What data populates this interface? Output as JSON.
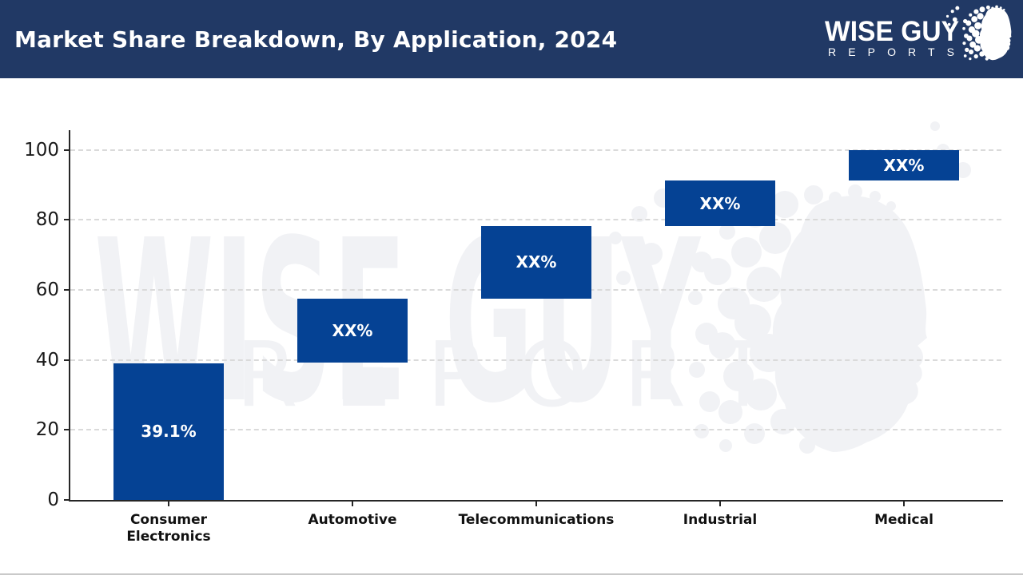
{
  "header": {
    "title": "Market Share Breakdown, By Application, 2024",
    "bg_color": "#213965",
    "logo": {
      "main": "WISE GUY",
      "sub": "REPORTS",
      "color": "#ffffff"
    }
  },
  "watermark": {
    "main": "WISE GUY",
    "sub": "REPORTS",
    "color": "#f1f2f5"
  },
  "chart_data": {
    "type": "bar",
    "subtype": "waterfall",
    "title": "Market Share Breakdown, By Application, 2024",
    "categories": [
      "Consumer Electronics",
      "Automotive",
      "Telecommunications",
      "Industrial",
      "Medical"
    ],
    "segments": [
      {
        "category": "Consumer Electronics",
        "start": 0,
        "end": 39.1,
        "size": 39.1,
        "label": "39.1%"
      },
      {
        "category": "Automotive",
        "start": 39.2,
        "end": 57.5,
        "size": 18.3,
        "label": "XX%"
      },
      {
        "category": "Telecommunications",
        "start": 57.5,
        "end": 78.2,
        "size": 20.7,
        "label": "XX%"
      },
      {
        "category": "Industrial",
        "start": 78.2,
        "end": 91.2,
        "size": 13.0,
        "label": "XX%"
      },
      {
        "category": "Medical",
        "start": 91.2,
        "end": 100,
        "size": 8.8,
        "label": "XX%"
      }
    ],
    "y_ticks": [
      0,
      20,
      40,
      60,
      80,
      100
    ],
    "ylim": [
      0,
      105.6
    ],
    "xlabel": "",
    "ylabel": "",
    "grid": "horizontal-dashed",
    "legend": "none",
    "colors": {
      "bar": "#054294",
      "bar_label": "#ffffff",
      "axis": "#262626",
      "grid": "#dadada",
      "tick_label": "#191919",
      "header_bg": "#213965",
      "watermark": "#f1f2f5"
    }
  }
}
